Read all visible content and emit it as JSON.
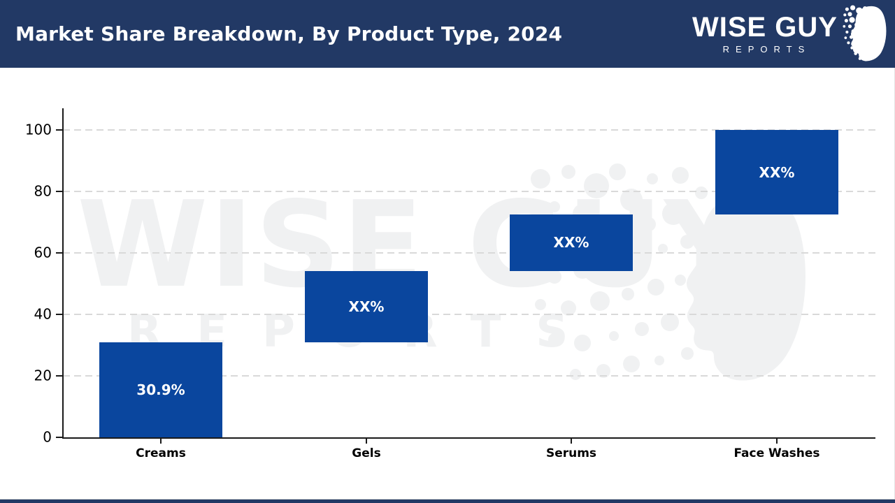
{
  "header": {
    "title": "Market Share Breakdown, By Product Type, 2024",
    "logo_line1": "WISE GUY",
    "logo_line2": "REPORTS"
  },
  "watermark": {
    "line1": "WISE GUY",
    "line2": "REPORTS"
  },
  "chart_data": {
    "type": "bar",
    "variant": "floating_waterfall",
    "title": "Market Share Breakdown, By Product Type, 2024",
    "categories": [
      "Creams",
      "Gels",
      "Serums",
      "Face Washes"
    ],
    "segments": [
      {
        "category": "Creams",
        "start": 0,
        "end": 30.9,
        "label": "30.9%"
      },
      {
        "category": "Gels",
        "start": 30.9,
        "end": 54.2,
        "label": "XX%"
      },
      {
        "category": "Serums",
        "start": 54.2,
        "end": 72.5,
        "label": "XX%"
      },
      {
        "category": "Face Washes",
        "start": 72.5,
        "end": 100,
        "label": "XX%"
      }
    ],
    "xlabel": "",
    "ylabel": "",
    "ylim": [
      0,
      107
    ],
    "yticks": [
      0,
      20,
      40,
      60,
      80,
      100
    ],
    "grid": "horizontal-dashed",
    "legend": "none",
    "bar_color": "#0a469e",
    "bar_label_color": "#ffffff",
    "axis_color": "#1a1a1a",
    "grid_color": "#d9d9d9",
    "header_bg_color": "#223965",
    "watermark_color": "#f0f1f2"
  }
}
